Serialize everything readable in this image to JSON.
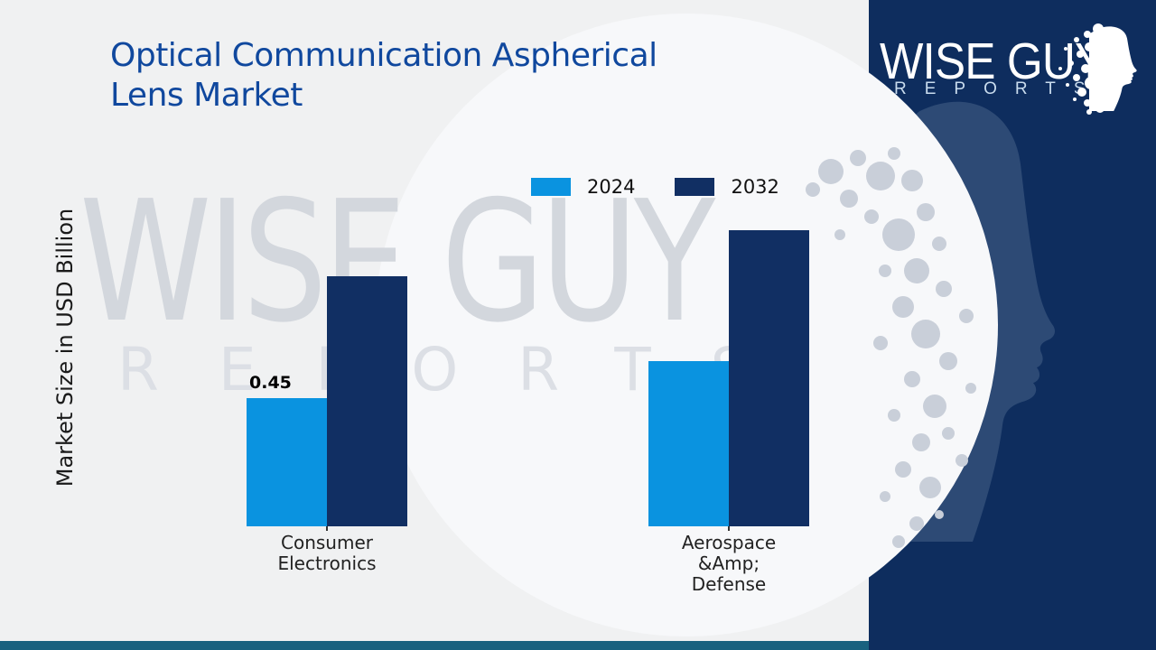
{
  "page": {
    "background": "#f0f1f2",
    "accent_strip_color": "#19617f"
  },
  "header": {
    "title_lines": [
      "Optical Communication Aspherical",
      "Lens Market"
    ],
    "title_color": "#10489e"
  },
  "brand_panel": {
    "color": "#0e2d5e",
    "logo_top": "WISE GUY",
    "logo_bottom": "REPORTS"
  },
  "watermark": {
    "line1": "WISE GUY",
    "line2": "REPORTS"
  },
  "chart_data": {
    "type": "bar",
    "title": "Optical Communication Aspherical Lens Market",
    "ylabel": "Market Size in USD Billion",
    "xlabel": "",
    "categories": [
      "Consumer Electronics",
      "Aerospace &Amp; Defense"
    ],
    "categories_display": [
      [
        "Consumer",
        "Electronics"
      ],
      [
        "Aerospace",
        "&Amp;",
        "Defense"
      ]
    ],
    "series": [
      {
        "name": "2024",
        "color": "#0a93e0",
        "values": [
          0.45,
          0.58
        ]
      },
      {
        "name": "2032",
        "color": "#112f63",
        "values": [
          0.88,
          1.04
        ]
      }
    ],
    "data_labels": [
      {
        "series": "2024",
        "category": "Consumer Electronics",
        "text": "0.45"
      }
    ],
    "ylim": [
      0,
      1.12
    ],
    "grid": false,
    "legend_position": "top-center"
  }
}
